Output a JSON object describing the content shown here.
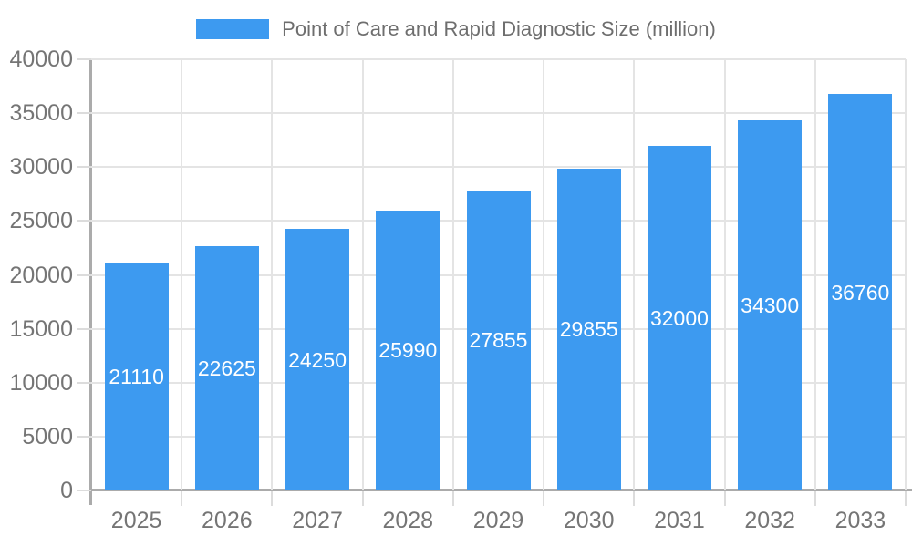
{
  "chart_data": {
    "type": "bar",
    "title": "",
    "legend": "Point of Care and Rapid Diagnostic Size (million)",
    "legend_position": "top-center",
    "categories": [
      "2025",
      "2026",
      "2027",
      "2028",
      "2029",
      "2030",
      "2031",
      "2032",
      "2033"
    ],
    "values": [
      21110,
      22625,
      24250,
      25990,
      27855,
      29855,
      32000,
      34300,
      36760
    ],
    "data_labels_shown": true,
    "xlabel": "",
    "ylabel": "",
    "ylim": [
      0,
      40000
    ],
    "y_ticks": [
      0,
      5000,
      10000,
      15000,
      20000,
      25000,
      30000,
      35000,
      40000
    ],
    "grid": "horizontal gridlines at y ticks, vertical gridlines at category boundaries",
    "colors": {
      "bar": "#3d9af0",
      "bar_label_text": "#ffffff",
      "axis_text": "#757575",
      "legend_text": "#6e6e6e",
      "gridline": "#e4e4e4",
      "tick": "#dcdcdc",
      "axis_line": "#ababab",
      "background": "#ffffff"
    }
  }
}
